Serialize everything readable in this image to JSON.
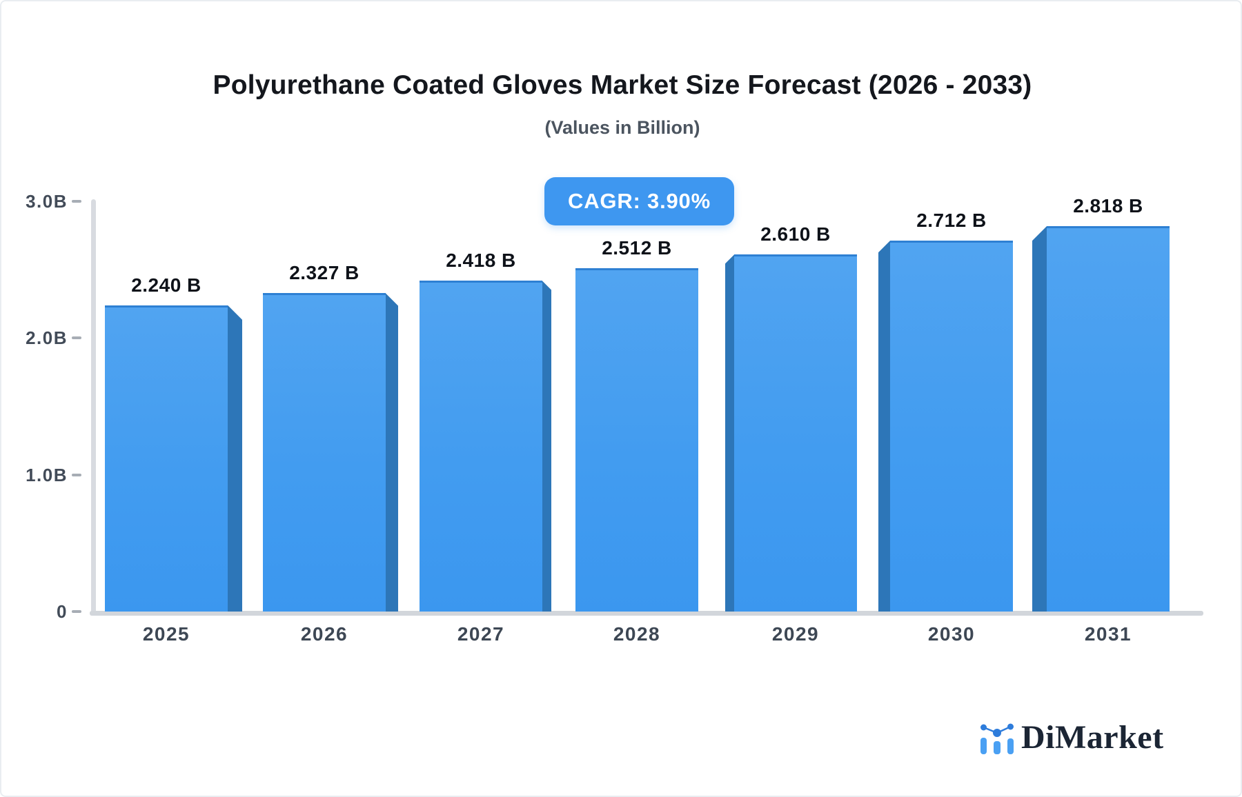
{
  "title": "Polyurethane Coated Gloves Market Size Forecast (2026 - 2033)",
  "subtitle": "(Values in Billion)",
  "cagr_badge": "CAGR: 3.90%",
  "brand": {
    "name": "DiMarket"
  },
  "colors": {
    "bar_face": "#429cf0",
    "bar_face_top_edge": "#2e80d3",
    "bar_side_shadow": "#2d76b8",
    "badge_blue": "#3e97f0",
    "axis_gray": "#d8dbe0",
    "tick_gray": "#a7adb5",
    "value_label": "#0e1219",
    "axis_label": "#424b58",
    "title_color": "#14171d",
    "subtitle_color": "#4b545f",
    "brand_navy": "#1b2534",
    "logo_bar_blue": "#4aa0f3",
    "logo_dot_blue": "#2e7cdb"
  },
  "chart_data": {
    "type": "bar",
    "title": "Polyurethane Coated Gloves Market Size Forecast (2026 - 2033)",
    "subtitle": "(Values in Billion)",
    "unit": "Billion",
    "categories": [
      "2025",
      "2026",
      "2027",
      "2028",
      "2029",
      "2030",
      "2031"
    ],
    "values": [
      2.24,
      2.327,
      2.418,
      2.512,
      2.61,
      2.712,
      2.818
    ],
    "bar_labels": [
      "2.240 B",
      "2.327 B",
      "2.418 B",
      "2.512 B",
      "2.610 B",
      "2.712 B",
      "2.818 B"
    ],
    "ylim": [
      0,
      3.0
    ],
    "yticks": [
      {
        "label": "3.0B",
        "value": 3.0
      },
      {
        "label": "2.0B",
        "value": 2.0
      },
      {
        "label": "1.0B",
        "value": 1.0
      },
      {
        "label": "0",
        "value": 0.0
      }
    ],
    "grid": false,
    "legend": false,
    "annotations": [
      "CAGR: 3.90%"
    ]
  }
}
